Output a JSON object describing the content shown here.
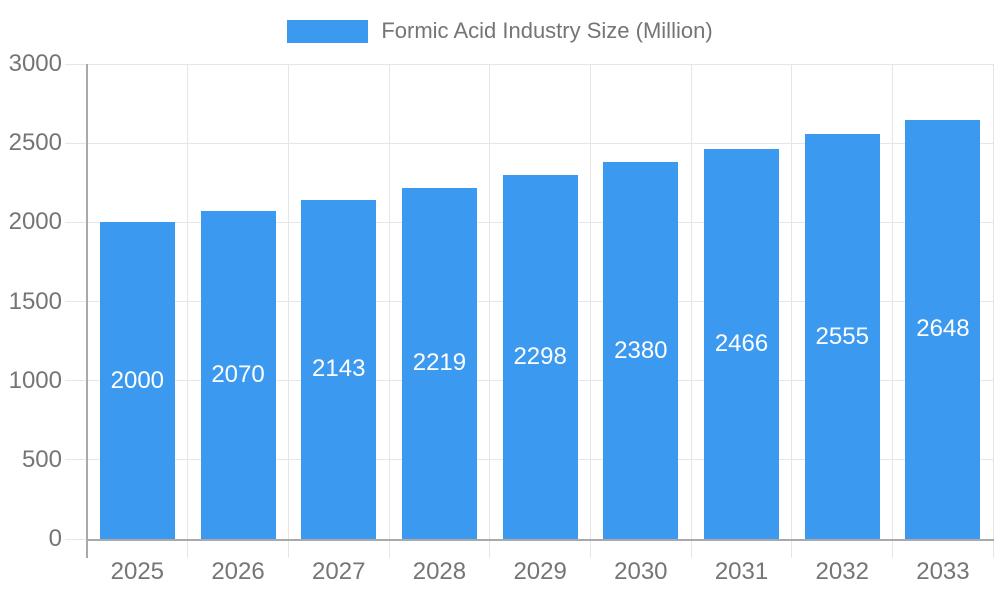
{
  "legend": {
    "label": "Formic Acid Industry Size (Million)"
  },
  "chart_data": {
    "type": "bar",
    "title": "Formic Acid Industry Size (Million)",
    "categories": [
      "2025",
      "2026",
      "2027",
      "2028",
      "2029",
      "2030",
      "2031",
      "2032",
      "2033"
    ],
    "series": [
      {
        "name": "Formic Acid Industry Size (Million)",
        "values": [
          2000,
          2070,
          2143,
          2219,
          2298,
          2380,
          2466,
          2555,
          2648
        ]
      }
    ],
    "bar_value_labels": [
      "2000",
      "2070",
      "2143",
      "2219",
      "2298",
      "2380",
      "2466",
      "2555",
      "2648"
    ],
    "xlabel": "",
    "ylabel": "",
    "ylim": [
      0,
      3000
    ],
    "yticks": [
      0,
      500,
      1000,
      1500,
      2000,
      2500,
      3000
    ],
    "grid": true,
    "legend_position": "top-center",
    "value_label_position": "inside-center",
    "colors": {
      "bar": "#3B99F0",
      "bar_label": "#FFFFFF",
      "axis_line": "#A9A9A9",
      "gridline": "#E6E6E6",
      "tick_text": "#757575",
      "legend_text": "#757575",
      "background": "#FFFFFF"
    }
  }
}
